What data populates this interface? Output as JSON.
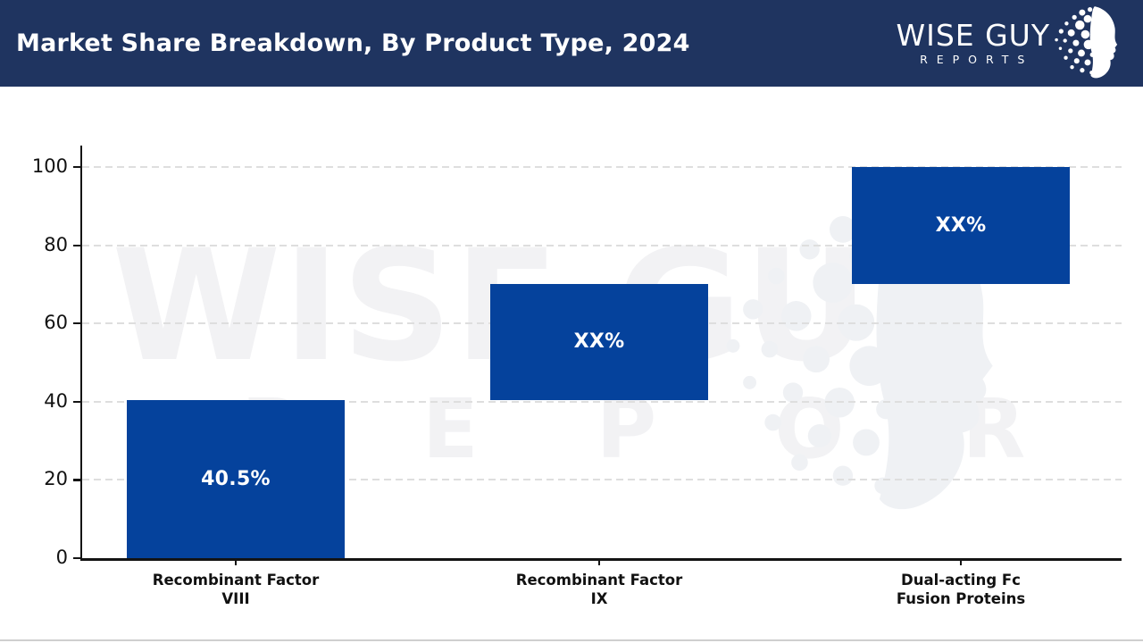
{
  "header": {
    "title": "Market Share Breakdown, By Product Type, 2024",
    "logo": {
      "primary": "WISE GUY",
      "secondary": "REPORTS"
    }
  },
  "watermark": {
    "primary": "WISE GUY",
    "secondary": "R E P O R T S"
  },
  "chart_data": {
    "type": "bar",
    "subtype": "floating-waterfall",
    "title": "Market Share Breakdown, By Product Type, 2024",
    "categories": [
      "Recombinant Factor\nVIII",
      "Recombinant Factor\nIX",
      "Dual-acting Fc\nFusion Proteins"
    ],
    "bars": [
      {
        "category": "Recombinant Factor VIII",
        "label": "40.5%",
        "start": 0,
        "end": 40.5
      },
      {
        "category": "Recombinant Factor IX",
        "label": "XX%",
        "start": 40.5,
        "end": 70
      },
      {
        "category": "Dual-acting Fc Fusion Proteins",
        "label": "XX%",
        "start": 70,
        "end": 100
      }
    ],
    "ylim": [
      0,
      100
    ],
    "yticks": [
      0,
      20,
      40,
      60,
      80,
      100
    ],
    "xlabel": "",
    "ylabel": "",
    "grid": "horizontal-dashed",
    "legend": "none",
    "bar_color": "#05429c",
    "bar_label_color": "#ffffff"
  },
  "colors": {
    "header_bg": "#1f3460",
    "bar_blue": "#05429c",
    "axis": "#141414",
    "gridline": "#dedede",
    "watermark": "#f2f2f4",
    "bottom_rule": "#cfcfcf"
  }
}
